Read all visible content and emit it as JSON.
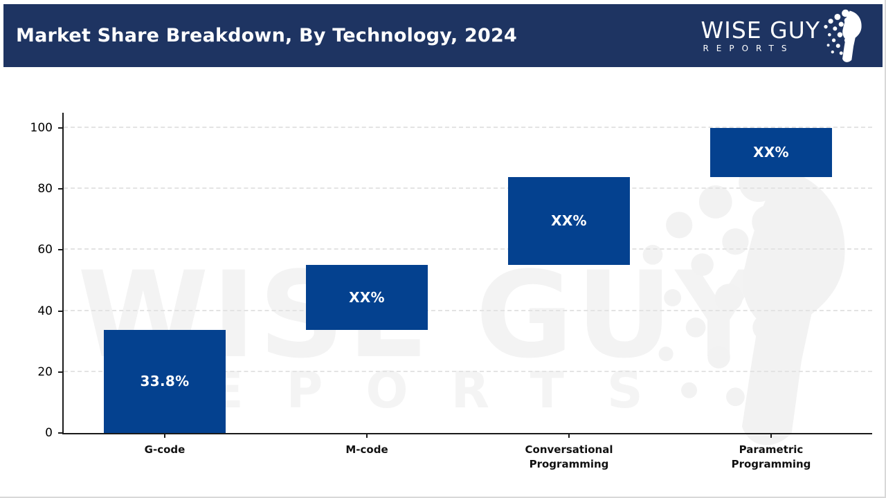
{
  "header": {
    "title": "Market Share Breakdown, By Technology, 2024",
    "bg_color": "#1e3462",
    "logo": {
      "line1": "WISE GUY",
      "line2": "REPORTS"
    }
  },
  "watermark": {
    "line1": "WISE GUY",
    "line2": "REPORTS"
  },
  "chart_data": {
    "type": "bar",
    "subtype": "waterfall",
    "title": "Market Share Breakdown, By Technology, 2024",
    "categories": [
      "G-code",
      "M-code",
      "Conversational Programming",
      "Parametric Programming"
    ],
    "segments": [
      {
        "category": "G-code",
        "start": 0,
        "end": 33.8,
        "label": "33.8%"
      },
      {
        "category": "M-code",
        "start": 33.8,
        "end": 55.2,
        "label": "XX%"
      },
      {
        "category": "Conversational Programming",
        "start": 55.2,
        "end": 84.0,
        "label": "XX%"
      },
      {
        "category": "Parametric Programming",
        "start": 84.0,
        "end": 100.0,
        "label": "XX%"
      }
    ],
    "xlabel": "",
    "ylabel": "",
    "ylim": [
      0,
      105
    ],
    "yticks": [
      0,
      20,
      40,
      60,
      80,
      100
    ],
    "grid": true,
    "legend": false,
    "bar_color": "#04418f",
    "value_label_color": "#ffffff"
  }
}
